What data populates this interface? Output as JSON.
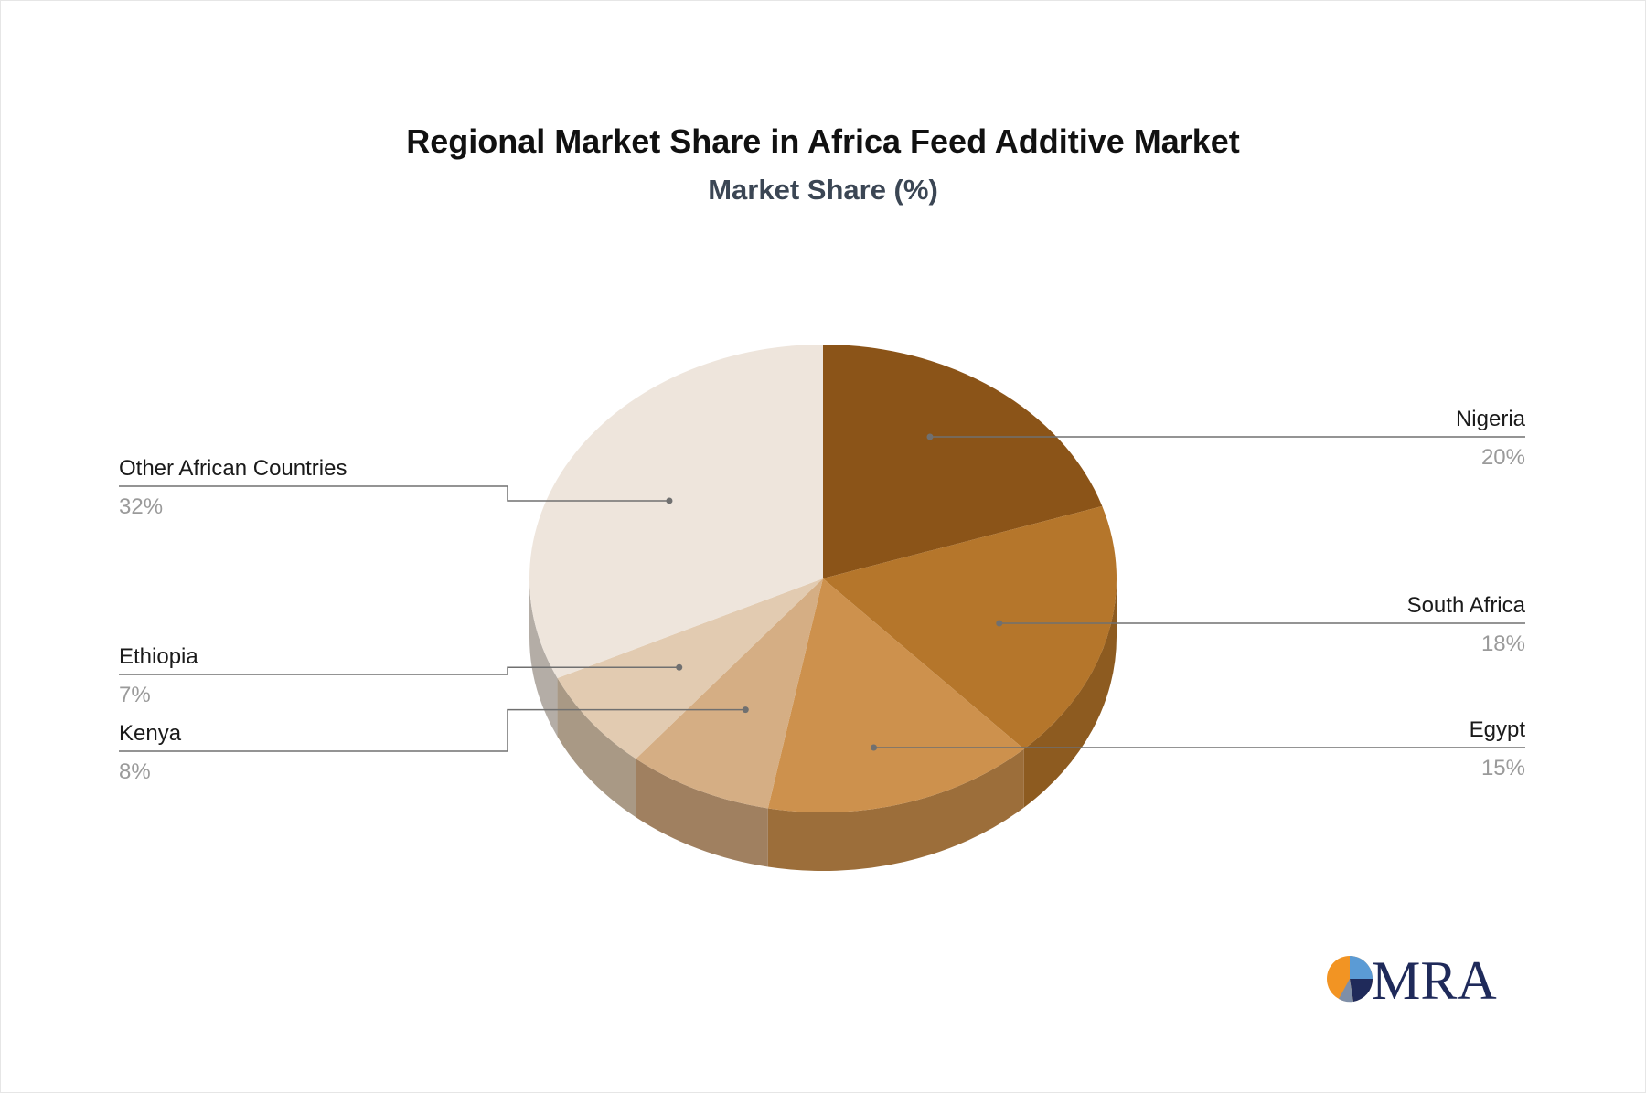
{
  "chart_data": {
    "type": "pie",
    "title": "Regional Market Share in Africa Feed Additive Market",
    "subtitle": "Market Share (%)",
    "unit": "%",
    "slices": [
      {
        "label": "Nigeria",
        "value": 20,
        "value_label": "20%",
        "color": "#8B5418",
        "side_color": "#6E4213"
      },
      {
        "label": "South Africa",
        "value": 18,
        "value_label": "18%",
        "color": "#B5762B",
        "side_color": "#8D5B20"
      },
      {
        "label": "Egypt",
        "value": 15,
        "value_label": "15%",
        "color": "#CD914D",
        "side_color": "#9C6E3A"
      },
      {
        "label": "Kenya",
        "value": 8,
        "value_label": "8%",
        "color": "#D5AE84",
        "side_color": "#A08060"
      },
      {
        "label": "Ethiopia",
        "value": 7,
        "value_label": "7%",
        "color": "#E2CBB1",
        "side_color": "#A99985"
      },
      {
        "label": "Other African Countries",
        "value": 32,
        "value_label": "32%",
        "color": "#EEE5DC",
        "side_color": "#B4ADA6"
      }
    ]
  },
  "logo": {
    "text": "MRA",
    "colors": {
      "orange": "#F29423",
      "navy": "#1F2A5A",
      "blue": "#5B9BD5"
    }
  }
}
